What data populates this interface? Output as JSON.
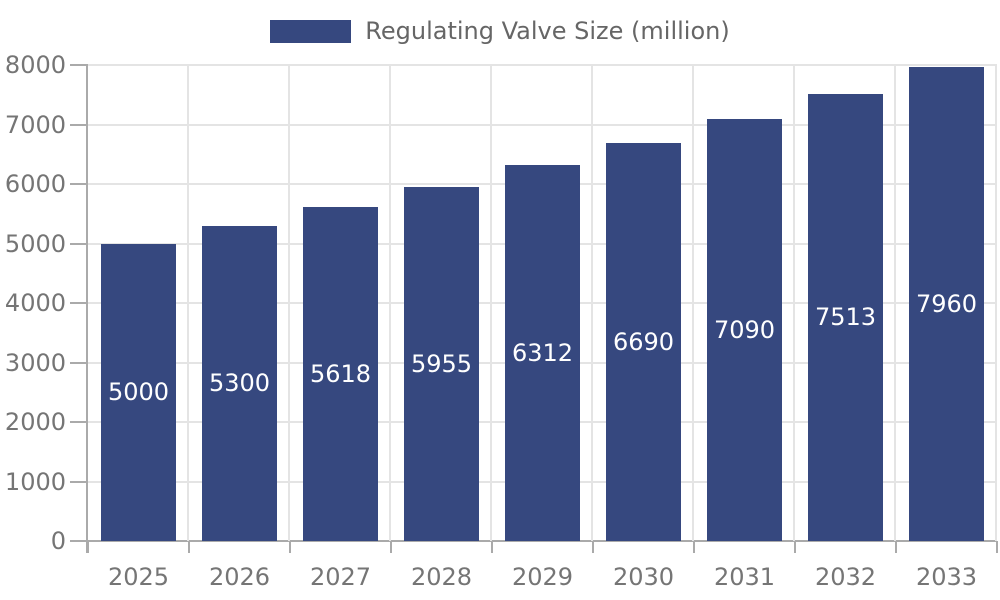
{
  "legend": {
    "label": "Regulating Valve Size (million)",
    "swatch_color": "#36487f"
  },
  "colors": {
    "bar": "#36487f",
    "bar_label": "#ffffff",
    "gridline": "#e4e4e4",
    "axis_line": "#aaaaaa",
    "axis_label": "#757575",
    "legend_text": "#666666",
    "background": "#ffffff"
  },
  "chart_data": {
    "type": "bar",
    "title": "",
    "xlabel": "",
    "ylabel": "",
    "categories": [
      "2025",
      "2026",
      "2027",
      "2028",
      "2029",
      "2030",
      "2031",
      "2032",
      "2033"
    ],
    "series": [
      {
        "name": "Regulating Valve Size (million)",
        "values": [
          5000,
          5300,
          5618,
          5955,
          6312,
          6690,
          7090,
          7513,
          7960
        ]
      }
    ],
    "bar_labels": [
      "5000",
      "5300",
      "5618",
      "5955",
      "6312",
      "6690",
      "7090",
      "7513",
      "7960"
    ],
    "ylim": [
      0,
      8000
    ],
    "yticks": [
      0,
      1000,
      2000,
      3000,
      4000,
      5000,
      6000,
      7000,
      8000
    ],
    "ytick_labels": [
      "0",
      "1000",
      "2000",
      "3000",
      "4000",
      "5000",
      "6000",
      "7000",
      "8000"
    ],
    "grid": true,
    "grid_vertical": true,
    "legend_position": "top",
    "bar_label_position": "inside-middle"
  }
}
